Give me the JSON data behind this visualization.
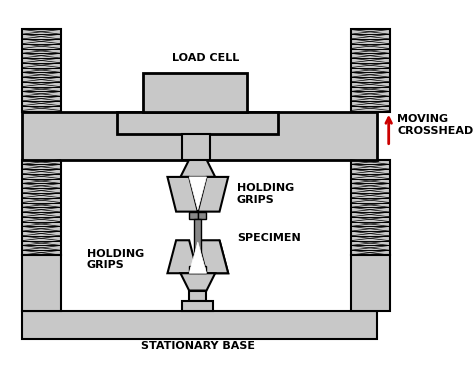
{
  "background_color": "#ffffff",
  "gray_fill": "#c8c8c8",
  "dark_outline": "#000000",
  "label_color": "#000000",
  "arrow_color": "#cc0000",
  "labels": {
    "load_cell": "LOAD CELL",
    "moving_crosshead": "MOVING\nCROSSHEAD",
    "holding_grips_top": "HOLDING\nGRIPS",
    "holding_grips_bottom": "HOLDING\nGRIPS",
    "specimen": "SPECIMEN",
    "stationary_base": "STATIONARY BASE"
  },
  "fig_width": 4.74,
  "fig_height": 3.79,
  "dpi": 100
}
